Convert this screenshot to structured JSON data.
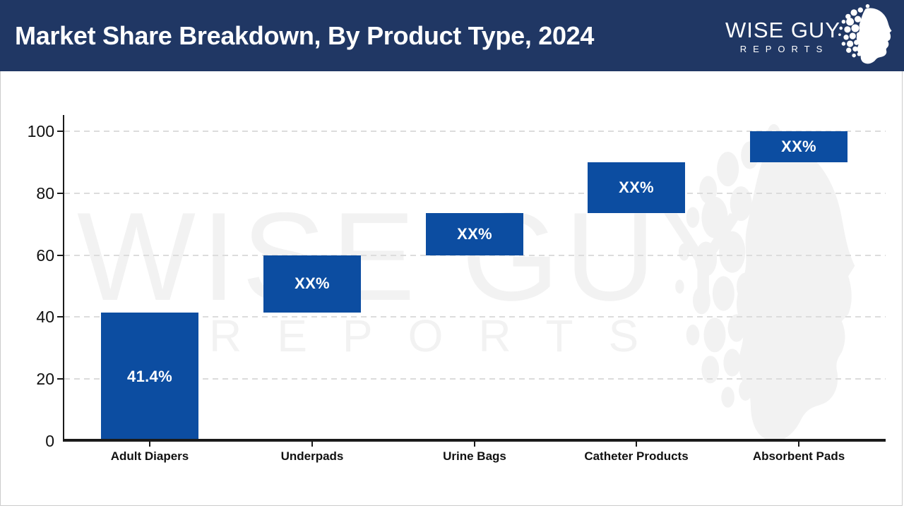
{
  "header": {
    "title": "Market Share Breakdown, By Product Type, 2024"
  },
  "logo": {
    "line1": "WISE GUY",
    "line2": "REPORTS"
  },
  "watermark": {
    "line1": "WISE GUY",
    "line2": "REPORTS"
  },
  "chart_data": {
    "type": "bar",
    "subtype": "waterfall",
    "title": "Market Share Breakdown, By Product Type, 2024",
    "categories": [
      "Adult Diapers",
      "Underpads",
      "Urine Bags",
      "Catheter Products",
      "Absorbent Pads"
    ],
    "segments": [
      {
        "category": "Adult Diapers",
        "start": 0,
        "end": 41.4,
        "value": 41.4,
        "label": "41.4%"
      },
      {
        "category": "Underpads",
        "start": 41.4,
        "end": 60,
        "value": 18.6,
        "label": "XX%"
      },
      {
        "category": "Urine Bags",
        "start": 60,
        "end": 73.5,
        "value": 13.5,
        "label": "XX%"
      },
      {
        "category": "Catheter Products",
        "start": 73.5,
        "end": 90,
        "value": 16.5,
        "label": "XX%"
      },
      {
        "category": "Absorbent Pads",
        "start": 90,
        "end": 100,
        "value": 10,
        "label": "XX%"
      }
    ],
    "yticks": [
      0,
      20,
      40,
      60,
      80,
      100
    ],
    "ylim": [
      0,
      105
    ],
    "xlabel": "",
    "ylabel": "",
    "grid": "horizontal-dashed",
    "legend": "none",
    "bar_color": "#0c4da1",
    "bar_label_color": "#ffffff",
    "header_color": "#203764",
    "grid_color": "#dcdcdc",
    "axis_color": "#1a1a1a"
  }
}
